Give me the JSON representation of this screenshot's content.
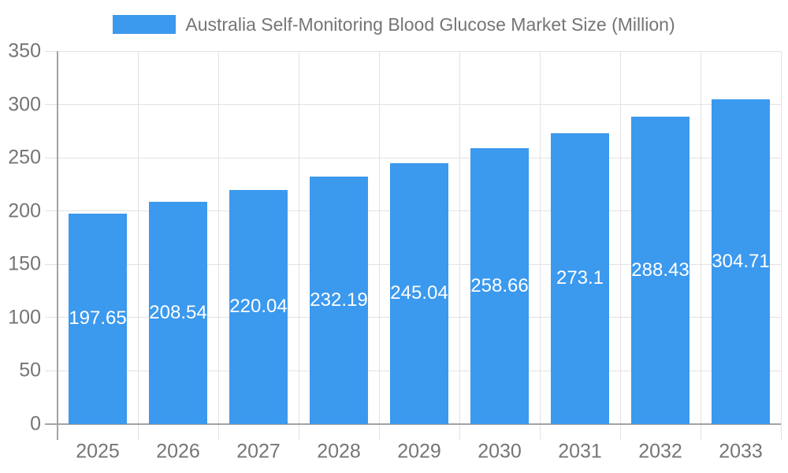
{
  "chart_data": {
    "type": "bar",
    "title": "Australia Self-Monitoring Blood Glucose Market Size (Million)",
    "legend": {
      "position": "top",
      "items": [
        {
          "label": "Australia Self-Monitoring Blood Glucose Market Size (Million)",
          "swatch_color": "#3B99EE"
        }
      ]
    },
    "categories": [
      "2025",
      "2026",
      "2027",
      "2028",
      "2029",
      "2030",
      "2031",
      "2032",
      "2033"
    ],
    "series": [
      {
        "name": "Australia Self-Monitoring Blood Glucose Market Size (Million)",
        "values": [
          197.65,
          208.54,
          220.04,
          232.19,
          245.04,
          258.66,
          273.1,
          288.43,
          304.71
        ]
      }
    ],
    "value_labels": [
      "197.65",
      "208.54",
      "220.04",
      "232.19",
      "245.04",
      "258.66",
      "273.1",
      "288.43",
      "304.71"
    ],
    "value_label_placement": "inside-middle",
    "xlabel": "",
    "ylabel": "",
    "ylim": [
      0,
      350
    ],
    "ytick_step": 50,
    "yticks": [
      "0",
      "50",
      "100",
      "150",
      "200",
      "250",
      "300",
      "350"
    ],
    "grid": {
      "horizontal": true,
      "vertical": true
    },
    "colors": {
      "bar": "#3B99EE",
      "value_label": "#FFFFFF",
      "tick_label": "#757575",
      "axis_line": "#A3A3A3",
      "gridline": "#E2E2E2",
      "background": "#FFFFFF"
    }
  }
}
